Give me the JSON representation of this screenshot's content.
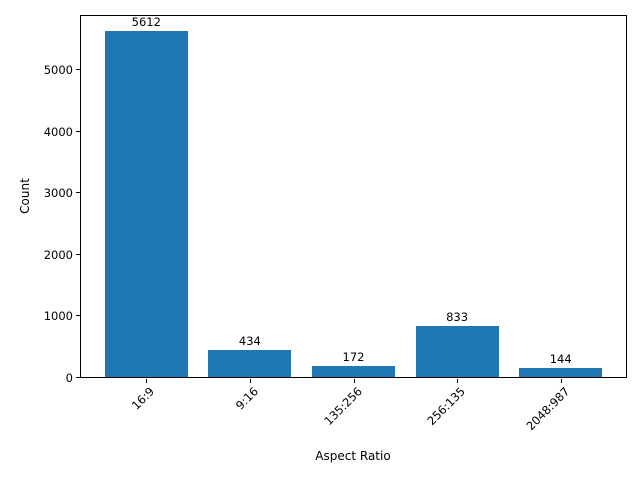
{
  "chart_data": {
    "type": "bar",
    "title": "",
    "xlabel": "Aspect Ratio",
    "ylabel": "Count",
    "categories": [
      "16:9",
      "9:16",
      "135:256",
      "256:135",
      "2048:987"
    ],
    "values": [
      5612,
      434,
      172,
      833,
      144
    ],
    "value_labels": [
      "5612",
      "434",
      "172",
      "833",
      "144"
    ],
    "yticks": [
      0,
      1000,
      2000,
      3000,
      4000,
      5000
    ],
    "ytick_labels": [
      "0",
      "1000",
      "2000",
      "3000",
      "4000",
      "5000"
    ],
    "ylim": [
      0,
      5892.6
    ],
    "bar_color": "#1f77b4",
    "x_tick_rotation": 45,
    "grid": false,
    "legend": null,
    "background_color": "#ffffff",
    "spine_color": "#000000"
  }
}
